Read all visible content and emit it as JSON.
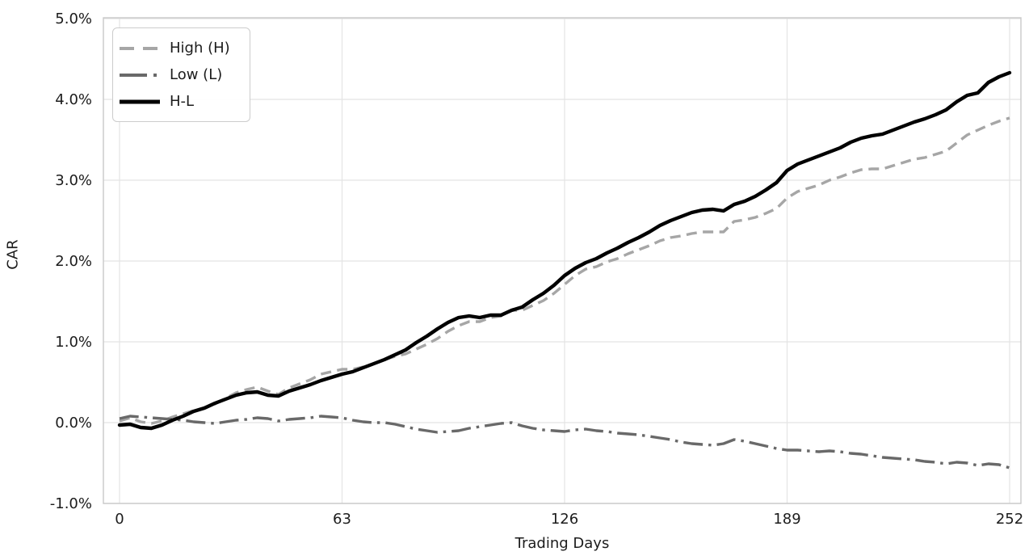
{
  "chart_data": {
    "type": "line",
    "title": "",
    "xlabel": "Trading Days",
    "ylabel": "CAR",
    "xlim": [
      0,
      252
    ],
    "ylim": [
      -1.0,
      5.0
    ],
    "grid": true,
    "grid_color": "#e4e4e4",
    "frame_color": "#c9c9c9",
    "tick_label_color": "#1c1c1c",
    "legend_position": "upper-left",
    "xticks": {
      "values": [
        0,
        63,
        126,
        189,
        252
      ],
      "labels": [
        "0",
        "63",
        "126",
        "189",
        "252"
      ]
    },
    "yticks": {
      "values": [
        -1,
        0,
        1,
        2,
        3,
        4,
        5
      ],
      "labels": [
        "-1.0%",
        "0.0%",
        "1.0%",
        "2.0%",
        "3.0%",
        "4.0%",
        "5.0%"
      ]
    },
    "x": [
      0,
      3,
      6,
      9,
      12,
      15,
      18,
      21,
      24,
      27,
      30,
      33,
      36,
      39,
      42,
      45,
      48,
      51,
      54,
      57,
      60,
      63,
      66,
      69,
      72,
      75,
      78,
      81,
      84,
      87,
      90,
      93,
      96,
      99,
      102,
      105,
      108,
      111,
      114,
      117,
      120,
      123,
      126,
      129,
      132,
      135,
      138,
      141,
      144,
      147,
      150,
      153,
      156,
      159,
      162,
      165,
      168,
      171,
      174,
      177,
      180,
      183,
      186,
      189,
      192,
      195,
      198,
      201,
      204,
      207,
      210,
      213,
      216,
      219,
      222,
      225,
      228,
      231,
      234,
      237,
      240,
      243,
      246,
      249,
      252
    ],
    "unit": "percent",
    "series": [
      {
        "name": "high",
        "label": "High (H)",
        "color": "#a6a6a6",
        "style": "dashed",
        "width": 3.4,
        "values": [
          0.02,
          0.06,
          0.01,
          -0.01,
          0.02,
          0.07,
          0.11,
          0.15,
          0.18,
          0.23,
          0.3,
          0.37,
          0.41,
          0.44,
          0.39,
          0.35,
          0.43,
          0.48,
          0.53,
          0.6,
          0.63,
          0.66,
          0.66,
          0.69,
          0.73,
          0.78,
          0.82,
          0.85,
          0.91,
          0.97,
          1.04,
          1.13,
          1.2,
          1.25,
          1.25,
          1.3,
          1.32,
          1.39,
          1.39,
          1.45,
          1.51,
          1.6,
          1.71,
          1.82,
          1.9,
          1.93,
          1.99,
          2.03,
          2.09,
          2.14,
          2.19,
          2.25,
          2.29,
          2.31,
          2.34,
          2.36,
          2.36,
          2.36,
          2.49,
          2.51,
          2.54,
          2.59,
          2.65,
          2.78,
          2.86,
          2.9,
          2.94,
          3.0,
          3.04,
          3.09,
          3.13,
          3.14,
          3.14,
          3.18,
          3.22,
          3.26,
          3.28,
          3.32,
          3.36,
          3.46,
          3.56,
          3.62,
          3.68,
          3.73,
          3.77
        ]
      },
      {
        "name": "low",
        "label": "Low (L)",
        "color": "#696969",
        "style": "dashdot",
        "width": 3.4,
        "values": [
          0.05,
          0.08,
          0.07,
          0.06,
          0.05,
          0.04,
          0.03,
          0.01,
          0.0,
          -0.01,
          0.01,
          0.03,
          0.04,
          0.06,
          0.05,
          0.02,
          0.04,
          0.05,
          0.06,
          0.08,
          0.07,
          0.06,
          0.03,
          0.01,
          0.0,
          0.0,
          -0.02,
          -0.05,
          -0.08,
          -0.1,
          -0.12,
          -0.11,
          -0.1,
          -0.07,
          -0.05,
          -0.03,
          -0.01,
          0.0,
          -0.04,
          -0.07,
          -0.09,
          -0.1,
          -0.11,
          -0.09,
          -0.08,
          -0.1,
          -0.11,
          -0.13,
          -0.14,
          -0.15,
          -0.17,
          -0.19,
          -0.21,
          -0.24,
          -0.26,
          -0.27,
          -0.28,
          -0.26,
          -0.21,
          -0.23,
          -0.26,
          -0.29,
          -0.32,
          -0.34,
          -0.34,
          -0.35,
          -0.36,
          -0.35,
          -0.36,
          -0.38,
          -0.39,
          -0.41,
          -0.43,
          -0.44,
          -0.45,
          -0.46,
          -0.48,
          -0.49,
          -0.51,
          -0.49,
          -0.5,
          -0.53,
          -0.51,
          -0.52,
          -0.56
        ]
      },
      {
        "name": "hl",
        "label": "H-L",
        "color": "#000000",
        "style": "solid",
        "width": 4.4,
        "values": [
          -0.03,
          -0.02,
          -0.06,
          -0.07,
          -0.03,
          0.03,
          0.08,
          0.14,
          0.18,
          0.24,
          0.29,
          0.34,
          0.37,
          0.38,
          0.34,
          0.33,
          0.39,
          0.43,
          0.47,
          0.52,
          0.56,
          0.6,
          0.63,
          0.68,
          0.73,
          0.78,
          0.84,
          0.9,
          0.99,
          1.07,
          1.16,
          1.24,
          1.3,
          1.32,
          1.3,
          1.33,
          1.33,
          1.39,
          1.43,
          1.52,
          1.6,
          1.7,
          1.82,
          1.91,
          1.98,
          2.03,
          2.1,
          2.16,
          2.23,
          2.29,
          2.36,
          2.44,
          2.5,
          2.55,
          2.6,
          2.63,
          2.64,
          2.62,
          2.7,
          2.74,
          2.8,
          2.88,
          2.97,
          3.12,
          3.2,
          3.25,
          3.3,
          3.35,
          3.4,
          3.47,
          3.52,
          3.55,
          3.57,
          3.62,
          3.67,
          3.72,
          3.76,
          3.81,
          3.87,
          3.97,
          4.05,
          4.08,
          4.21,
          4.28,
          4.33
        ]
      }
    ]
  }
}
